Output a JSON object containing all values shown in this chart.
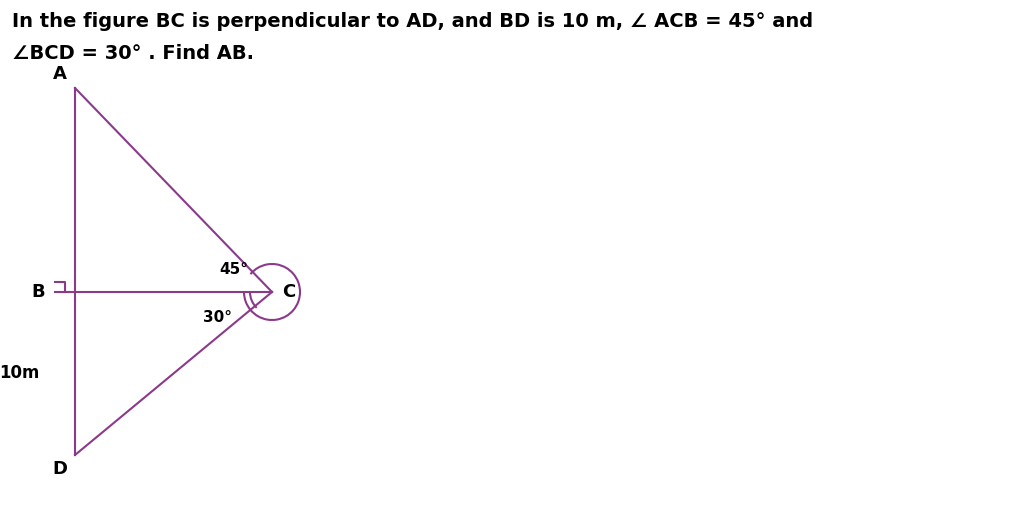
{
  "title_line1": "In the figure BC is perpendicular to AD, and BD is 10 m, ∠ ACB = 45° and",
  "title_line2": "∠BCD = 30° . Find AB.",
  "background_color": "#ffffff",
  "line_color": "#8B3A8B",
  "text_color": "#000000",
  "label_A": "A",
  "label_B": "B",
  "label_C": "C",
  "label_D": "D",
  "label_BD": "10m",
  "angle_ACB_label": "45°",
  "angle_BCD_label": "30°",
  "figsize": [
    10.24,
    5.07
  ],
  "dpi": 100,
  "title_fontsize": 14,
  "label_fontsize": 13
}
